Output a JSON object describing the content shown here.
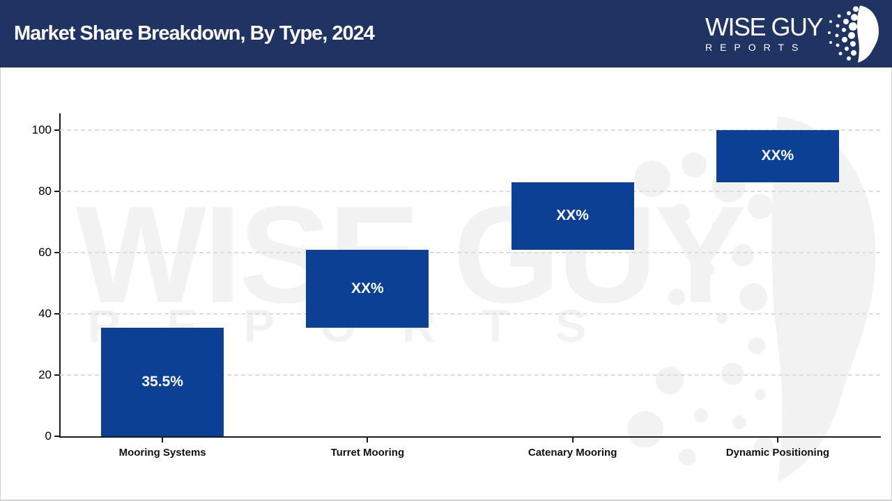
{
  "header": {
    "title": "Market Share Breakdown, By Type, 2024",
    "logo": {
      "name": "WISE GUY",
      "tagline": "REPORTS"
    }
  },
  "watermark": {
    "line1": "WISE GUY",
    "line2": "REPORTS"
  },
  "colors": {
    "header_bg": "#1f3463",
    "bar": "#0c4094",
    "bar_label": "#ffffff",
    "grid": "#dcdcdc",
    "axis": "#1a1a1a",
    "watermark": "#f2f2f2"
  },
  "chart_data": {
    "type": "bar",
    "subtype": "waterfall",
    "title": "Market Share Breakdown, By Type, 2024",
    "categories": [
      "Mooring Systems",
      "Turret Mooring",
      "Catenary Mooring",
      "Dynamic Positioning"
    ],
    "bars": [
      {
        "category": "Mooring Systems",
        "start": 0,
        "end": 35.5,
        "label": "35.5%"
      },
      {
        "category": "Turret Mooring",
        "start": 35.5,
        "end": 61,
        "label": "XX%"
      },
      {
        "category": "Catenary Mooring",
        "start": 61,
        "end": 83,
        "label": "XX%"
      },
      {
        "category": "Dynamic Positioning",
        "start": 83,
        "end": 100,
        "label": "XX%"
      }
    ],
    "xlabel": "",
    "ylabel": "",
    "ylim": [
      0,
      100
    ],
    "yticks": [
      0,
      20,
      40,
      60,
      80,
      100
    ],
    "grid": "horizontal-dashed",
    "legend": "none"
  }
}
